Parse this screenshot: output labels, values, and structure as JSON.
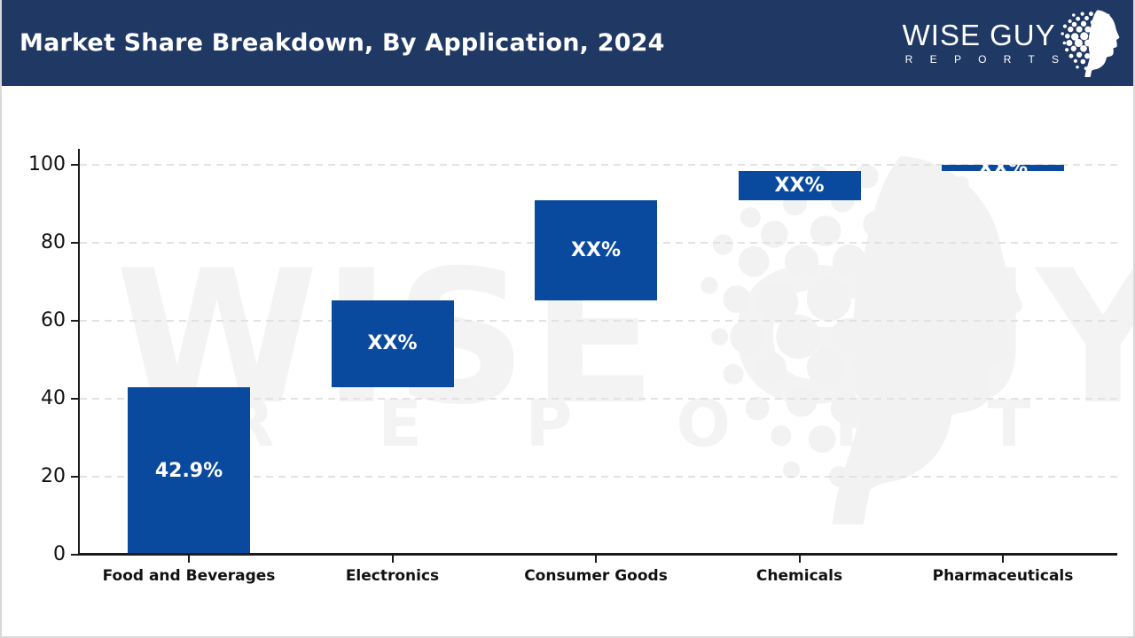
{
  "header": {
    "title": "Market Share Breakdown, By Application, 2024",
    "brand": {
      "name_top": "WISE GUY",
      "name_bottom": "R E P O R T S"
    }
  },
  "watermark": {
    "text_top": "WISE GUY",
    "text_bottom": "R E P O R T S"
  },
  "colors": {
    "header_bg": "#1f3864",
    "bar_blue": "#0a4a9e",
    "gridline": "#e2e2e2",
    "axis": "#1a1a1a",
    "bar_label": "#ffffff",
    "watermark": "#f3f3f3"
  },
  "chart_data": {
    "type": "bar",
    "subtype": "floating-waterfall",
    "title": "Market Share Breakdown, By Application, 2024",
    "categories": [
      "Food and Beverages",
      "Electronics",
      "Consumer Goods",
      "Chemicals",
      "Pharmaceuticals"
    ],
    "segments": [
      {
        "category": "Food and Beverages",
        "start": 0,
        "end": 42.9,
        "label": "42.9%"
      },
      {
        "category": "Electronics",
        "start": 42.9,
        "end": 65.3,
        "label": "XX%"
      },
      {
        "category": "Consumer Goods",
        "start": 65.3,
        "end": 90.9,
        "label": "XX%"
      },
      {
        "category": "Chemicals",
        "start": 90.9,
        "end": 98.3,
        "label": "XX%"
      },
      {
        "category": "Pharmaceuticals",
        "start": 98.3,
        "end": 100,
        "label": "XX%"
      }
    ],
    "xlabel": "",
    "ylabel": "",
    "ylim": [
      0,
      100
    ],
    "yticks": [
      0,
      20,
      40,
      60,
      80,
      100
    ],
    "grid": "horizontal-dashed",
    "legend": "none",
    "bar_color": "#0a4a9e"
  }
}
